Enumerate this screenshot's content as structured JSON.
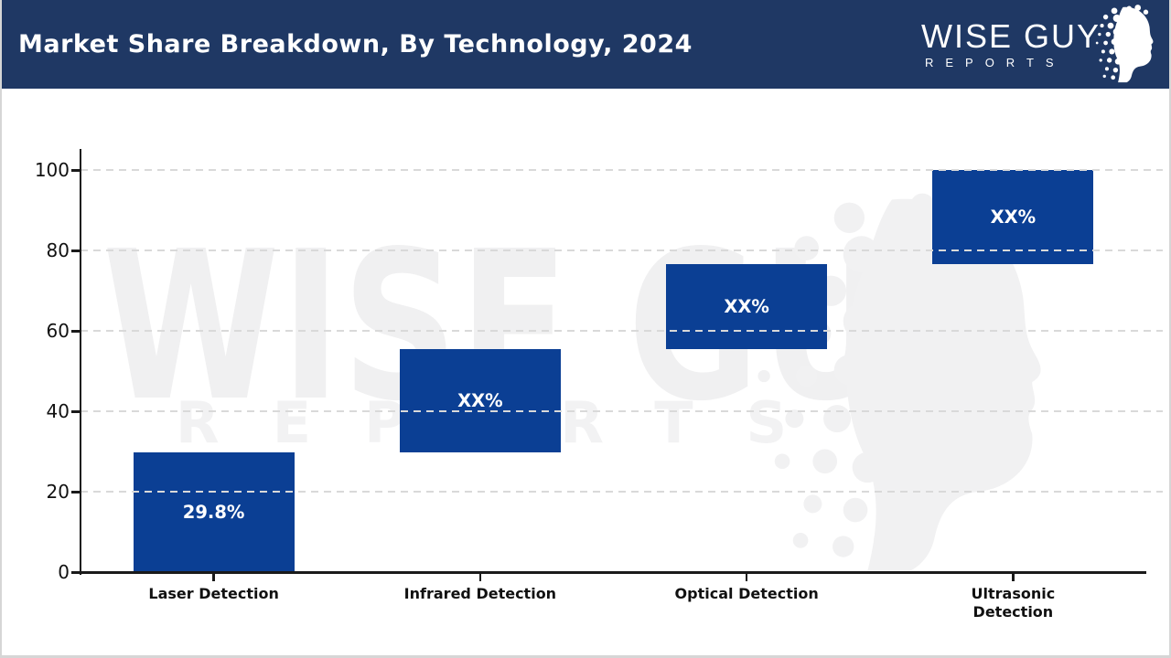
{
  "header": {
    "title": "Market Share Breakdown, By Technology, 2024",
    "logo": {
      "brand": "WISE GUY",
      "sub": "REPORTS"
    }
  },
  "watermark": {
    "brand": "WISE GUY",
    "sub": "REPORTS"
  },
  "chart_data": {
    "type": "bar",
    "subtype": "floating-segment-waterfall",
    "title": "Market Share Breakdown, By Technology, 2024",
    "categories": [
      "Laser Detection",
      "Infrared Detection",
      "Optical Detection",
      "Ultrasonic\nDetection"
    ],
    "segments": [
      {
        "category": "Laser Detection",
        "start": 0,
        "end": 29.8,
        "value_label": "29.8%"
      },
      {
        "category": "Infrared Detection",
        "start": 29.8,
        "end": 55.5,
        "value_label": "XX%"
      },
      {
        "category": "Optical Detection",
        "start": 55.5,
        "end": 76.6,
        "value_label": "XX%"
      },
      {
        "category": "Ultrasonic Detection",
        "start": 76.6,
        "end": 100,
        "value_label": "XX%"
      }
    ],
    "y_ticks": [
      0,
      20,
      40,
      60,
      80,
      100
    ],
    "ylim": [
      0,
      100
    ],
    "xlabel": "",
    "ylabel": "",
    "grid": true,
    "legend": false,
    "colors": {
      "bar": "#0b3f94",
      "grid": "#d9d9d9",
      "axis": "#1a1a1a",
      "value_label": "#ffffff",
      "header_bg": "#1f3864",
      "watermark": "#f0f0f1"
    }
  }
}
